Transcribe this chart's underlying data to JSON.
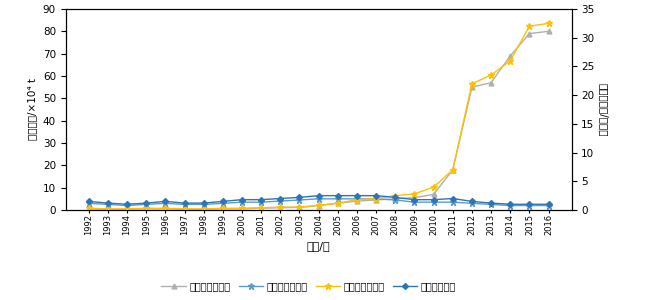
{
  "years": [
    1992,
    1993,
    1994,
    1995,
    1996,
    1997,
    1998,
    1999,
    2000,
    2001,
    2002,
    2003,
    2004,
    2005,
    2006,
    2007,
    2008,
    2009,
    2010,
    2011,
    2012,
    2013,
    2014,
    2015,
    2016
  ],
  "import_volume": [
    0.5,
    0.3,
    0.3,
    0.5,
    0.5,
    0.3,
    0.3,
    0.5,
    0.5,
    0.8,
    1.0,
    1.2,
    2.0,
    3.0,
    4.0,
    4.5,
    5.0,
    5.5,
    7.0,
    18.0,
    55.0,
    57.0,
    69.0,
    79.0,
    80.0
  ],
  "export_volume": [
    3.0,
    2.5,
    2.0,
    2.5,
    3.0,
    2.5,
    2.5,
    3.0,
    3.5,
    3.5,
    4.0,
    4.5,
    5.0,
    5.0,
    5.0,
    5.0,
    4.5,
    3.5,
    3.5,
    3.5,
    3.0,
    2.5,
    2.0,
    2.0,
    2.0
  ],
  "import_value": [
    0.3,
    0.2,
    0.2,
    0.3,
    0.3,
    0.2,
    0.2,
    0.3,
    0.3,
    0.4,
    0.5,
    0.5,
    0.8,
    1.2,
    1.8,
    2.0,
    2.5,
    2.8,
    4.0,
    7.0,
    22.0,
    23.5,
    26.0,
    32.0,
    32.5
  ],
  "export_value": [
    1.5,
    1.2,
    1.0,
    1.2,
    1.5,
    1.2,
    1.2,
    1.5,
    1.8,
    1.8,
    2.0,
    2.2,
    2.5,
    2.5,
    2.5,
    2.5,
    2.2,
    1.8,
    1.8,
    2.0,
    1.5,
    1.2,
    1.0,
    1.0,
    1.0
  ],
  "left_ylim": [
    0,
    90
  ],
  "left_yticks": [
    0,
    10,
    20,
    30,
    40,
    50,
    60,
    70,
    80,
    90
  ],
  "right_ylim": [
    0,
    35
  ],
  "right_yticks": [
    0,
    5,
    10,
    15,
    20,
    25,
    30,
    35
  ],
  "left_ylabel": "进出口量/×10⁴ t",
  "right_ylabel": "进出口金额/亿美元",
  "xlabel": "时间/年",
  "legend_labels": [
    "牛羊肉进口量；",
    "牛羊肉出口量；",
    "牛羊肉进口额；",
    "牛羊肉出口额"
  ],
  "import_vol_color": "#b0b0b0",
  "export_vol_color": "#5b9bd5",
  "import_val_color": "#ffc000",
  "export_val_color": "#2e75b6",
  "bg_color": "#ffffff"
}
